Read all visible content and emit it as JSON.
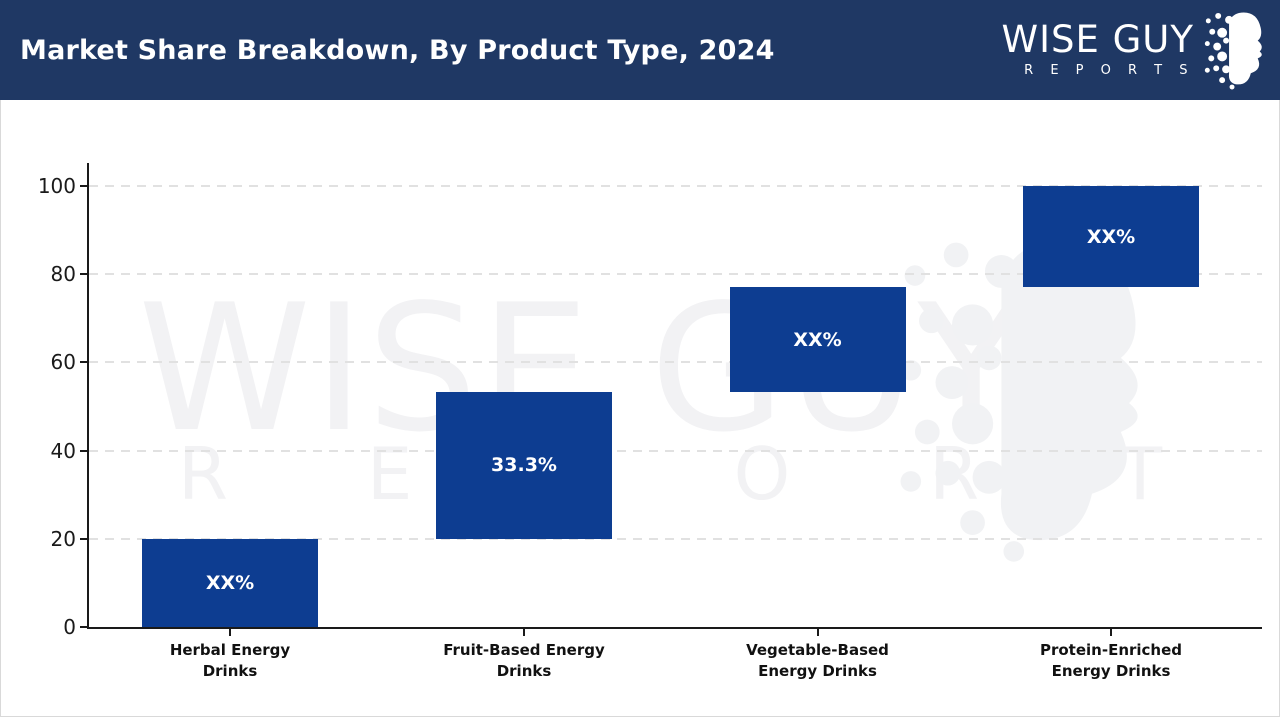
{
  "header": {
    "title": "Market Share Breakdown, By Product Type, 2024",
    "bg_color": "#1f3864",
    "logo": {
      "line1": "WISE GUY",
      "line2": "R E P O R T S"
    }
  },
  "watermark": {
    "line1": "WISE GUY",
    "line2": "R E P O R T S"
  },
  "chart_data": {
    "type": "bar",
    "subtype": "floating-waterfall",
    "title": "Market Share Breakdown, By Product Type, 2024",
    "categories": [
      {
        "line1": "Herbal Energy",
        "line2": "Drinks"
      },
      {
        "line1": "Fruit-Based Energy",
        "line2": "Drinks"
      },
      {
        "line1": "Vegetable-Based",
        "line2": "Energy Drinks"
      },
      {
        "line1": "Protein-Enriched",
        "line2": "Energy Drinks"
      }
    ],
    "segments": [
      {
        "start": 0,
        "end": 20,
        "value": 20,
        "label": "XX%"
      },
      {
        "start": 20,
        "end": 53.3,
        "value": 33.3,
        "label": "33.3%"
      },
      {
        "start": 53.3,
        "end": 77,
        "value": 23.7,
        "label": "XX%"
      },
      {
        "start": 77,
        "end": 100,
        "value": 23,
        "label": "XX%"
      }
    ],
    "yticks": [
      0,
      20,
      40,
      60,
      80,
      100
    ],
    "ylim": [
      0,
      105
    ],
    "xlabel": "",
    "ylabel": "",
    "legend": "none",
    "grid": {
      "axis": "y",
      "style": "dashed",
      "color": "#e1e1e1"
    },
    "bar_color": "#0d3d91",
    "bar_label_color": "#ffffff",
    "axis_color": "#1a1a1a"
  }
}
